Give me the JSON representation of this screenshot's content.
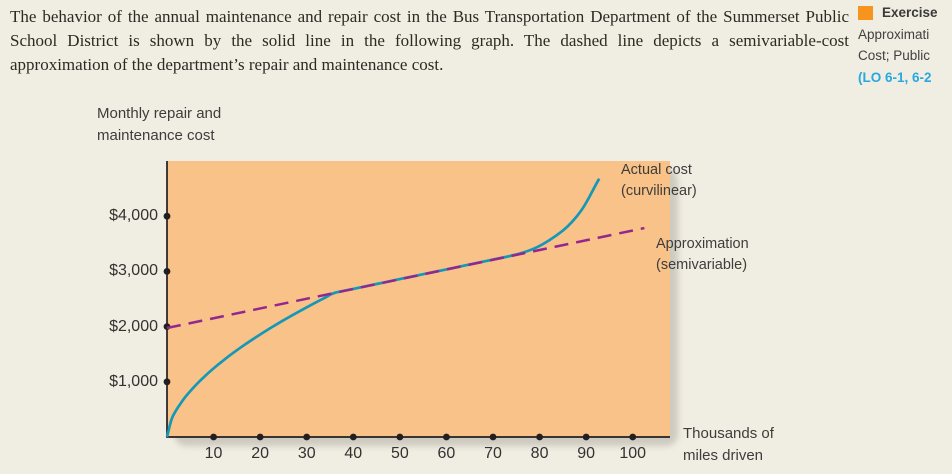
{
  "page": {
    "paragraph": "The behavior of the annual maintenance and repair cost in the Bus Transportation Department of the Summerset Public School District is shown by the solid line in the following graph. The dashed line depicts a semivariable-cost approximation of the department’s repair and maintenance cost."
  },
  "sidebar": {
    "bullet_color": "#F7941E",
    "title": "Exercise",
    "line2": "Approximati",
    "line3": "Cost; Public",
    "lo_line": "(LO 6-1, 6-2",
    "lo_color": "#29A8DF"
  },
  "chart_data": {
    "type": "line",
    "title": "",
    "y_axis_title_lines": [
      "Monthly repair and",
      "maintenance cost"
    ],
    "x_axis_label_lines": [
      "Thousands of",
      "miles driven"
    ],
    "x_range": [
      0,
      108
    ],
    "y_range": [
      0,
      5000
    ],
    "x_ticks": [
      10,
      20,
      30,
      40,
      50,
      60,
      70,
      80,
      90,
      100
    ],
    "y_ticks": [
      {
        "value": 1000,
        "label": "$1,000"
      },
      {
        "value": 2000,
        "label": "$2,000"
      },
      {
        "value": 3000,
        "label": "$3,000"
      },
      {
        "value": 4000,
        "label": "$4,000"
      }
    ],
    "grid": false,
    "legend_position": "inline-right",
    "plot_bg": "#F9C288",
    "axis_color": "#231F20",
    "series": [
      {
        "name": "Actual cost",
        "descriptor": "(curvilinear)",
        "style": "solid",
        "color": "#1598B7",
        "points": [
          [
            0,
            0
          ],
          [
            1,
            327
          ],
          [
            2,
            489
          ],
          [
            3,
            618
          ],
          [
            4,
            731
          ],
          [
            5,
            831
          ],
          [
            6.5,
            967
          ],
          [
            8,
            1092
          ],
          [
            10,
            1243
          ],
          [
            12,
            1381
          ],
          [
            14,
            1510
          ],
          [
            16.5,
            1661
          ],
          [
            19,
            1803
          ],
          [
            22,
            1963
          ],
          [
            25,
            2114
          ],
          [
            28,
            2258
          ],
          [
            31,
            2395
          ],
          [
            34,
            2527
          ],
          [
            36,
            2612
          ],
          [
            40,
            2683
          ],
          [
            45,
            2772
          ],
          [
            50,
            2860
          ],
          [
            55,
            2949
          ],
          [
            60,
            3037
          ],
          [
            65,
            3126
          ],
          [
            70,
            3214
          ],
          [
            73,
            3267
          ],
          [
            76,
            3330
          ],
          [
            79,
            3420
          ],
          [
            82,
            3560
          ],
          [
            85,
            3740
          ],
          [
            87,
            3900
          ],
          [
            89,
            4110
          ],
          [
            90.5,
            4320
          ],
          [
            92,
            4560
          ],
          [
            92.8,
            4680
          ]
        ]
      },
      {
        "name": "Approximation",
        "descriptor": "(semivariable)",
        "style": "dashed",
        "color": "#93278F",
        "points": [
          [
            0,
            1975
          ],
          [
            102.5,
            3785
          ]
        ]
      }
    ]
  }
}
